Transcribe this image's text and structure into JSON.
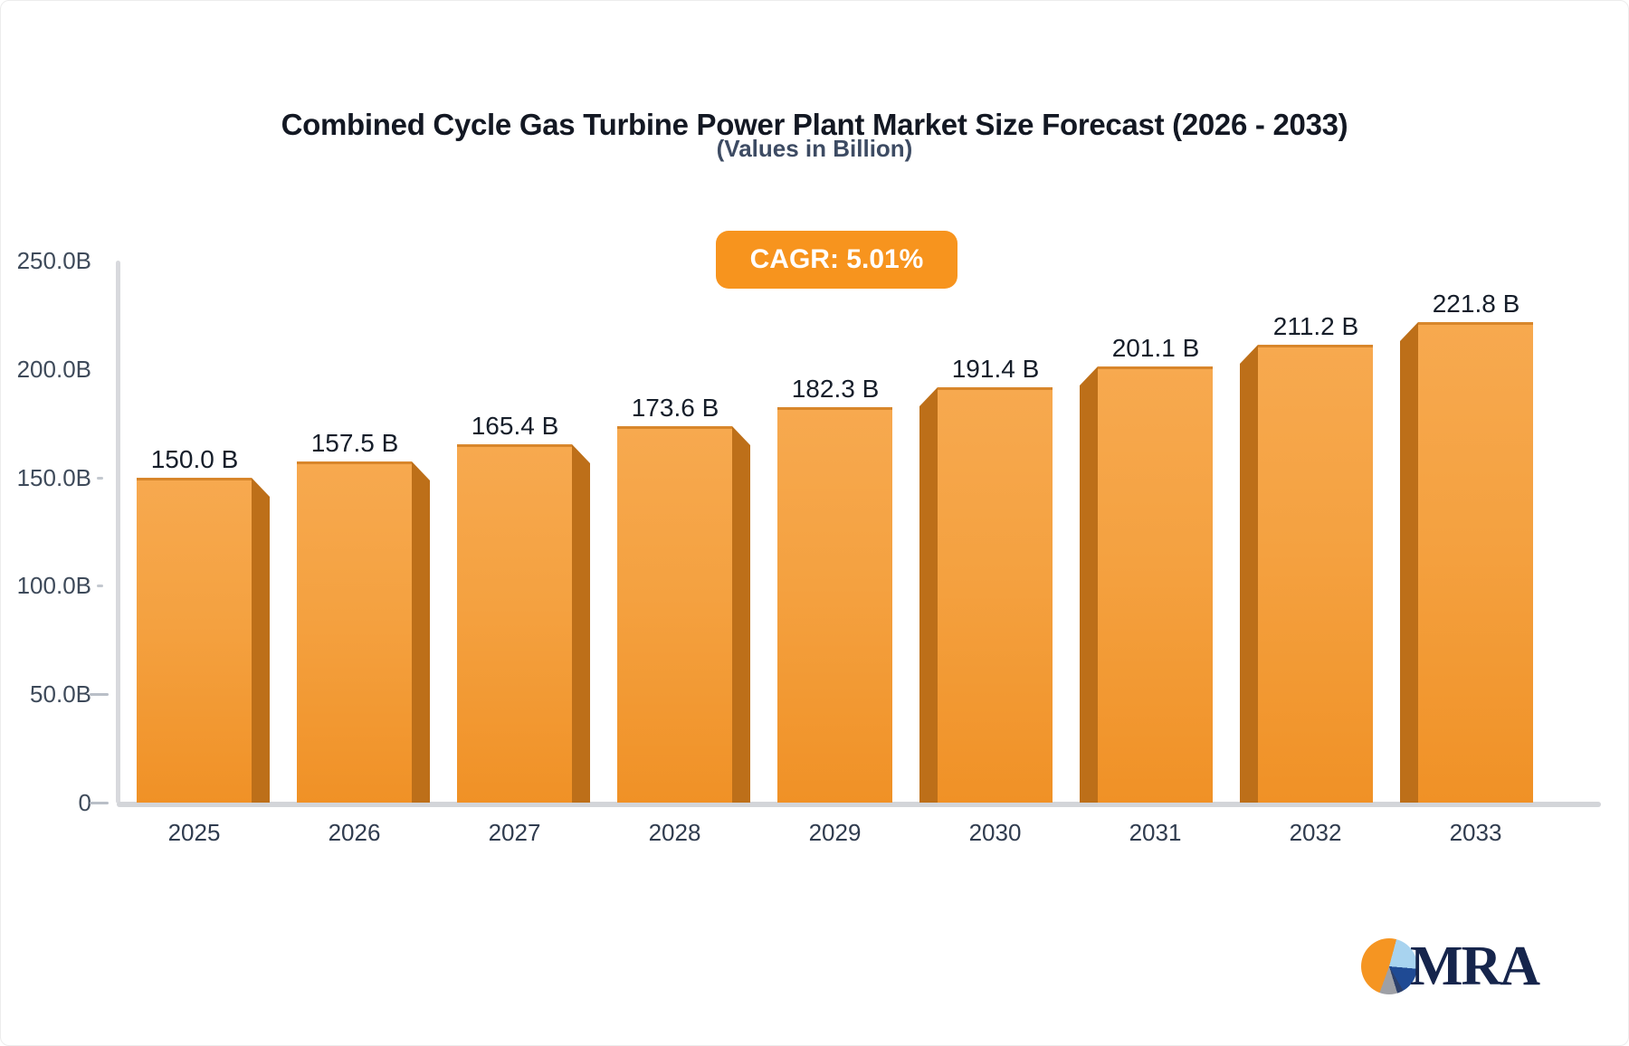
{
  "header": {
    "title": "Combined Cycle Gas Turbine Power Plant Market Size Forecast (2026 - 2033)",
    "subtitle": "(Values in Billion)",
    "cagr_badge": "CAGR: 5.01%"
  },
  "logo": {
    "text": "MRA",
    "pie_icon_colors": {
      "orange": "#f59522",
      "light_blue": "#a8d3ef",
      "royal_blue": "#1f4a94",
      "navy": "#2b3f6b",
      "gray": "#9ea0a6"
    }
  },
  "chart_data": {
    "type": "bar",
    "title": "Combined Cycle Gas Turbine Power Plant Market Size Forecast (2026 - 2033)",
    "subtitle": "(Values in Billion)",
    "annotation": "CAGR: 5.01%",
    "categories": [
      "2025",
      "2026",
      "2027",
      "2028",
      "2029",
      "2030",
      "2031",
      "2032",
      "2033"
    ],
    "values": [
      150.0,
      157.5,
      165.4,
      173.6,
      182.3,
      191.4,
      201.1,
      211.2,
      221.8
    ],
    "value_labels": [
      "150.0 B",
      "157.5 B",
      "165.4 B",
      "173.6 B",
      "182.3 B",
      "191.4 B",
      "201.1 B",
      "211.2 B",
      "221.8 B"
    ],
    "xlabel": "",
    "ylabel": "",
    "ylim": [
      0,
      250
    ],
    "y_ticks": [
      {
        "label": "250.0B",
        "value": 250,
        "tick": "none"
      },
      {
        "label": "200.0B",
        "value": 200,
        "tick": "none"
      },
      {
        "label": "150.0B",
        "value": 150,
        "tick": "small"
      },
      {
        "label": "100.0B",
        "value": 100,
        "tick": "small"
      },
      {
        "label": "50.0B",
        "value": 50,
        "tick": "large"
      },
      {
        "label": "0",
        "value": 0,
        "tick": "large"
      }
    ],
    "grid": false,
    "legend": "none",
    "bar_style": "3d-extruded",
    "colors": {
      "bar_top": "#f7a94f",
      "bar_bottom": "#f09126",
      "bar_edge": "#d8862b",
      "bar_side": "#bd6f19",
      "badge": "#f7941e",
      "axis": "#d8d9dd"
    }
  }
}
